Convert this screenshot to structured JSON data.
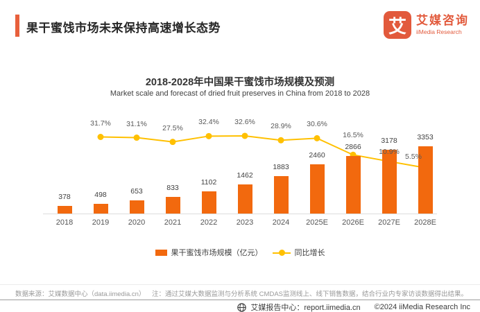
{
  "header": {
    "title": "果干蜜饯市场未来保持高速增长态势"
  },
  "logo": {
    "glyph": "艾",
    "name_cn": "艾媒咨询",
    "name_en": "iiMedia Research"
  },
  "chart_data": {
    "type": "bar+line",
    "title": "2018-2028年中国果干蜜饯市场规模及预测",
    "subtitle": "Market scale and forecast of dried fruit preserves in China from 2018 to 2028",
    "categories": [
      "2018",
      "2019",
      "2020",
      "2021",
      "2022",
      "2023",
      "2024",
      "2025E",
      "2026E",
      "2027E",
      "2028E"
    ],
    "series": [
      {
        "name": "果干蜜饯市场规模（亿元）",
        "type": "bar",
        "color": "#F2690E",
        "values": [
          378,
          498,
          653,
          833,
          1102,
          1462,
          1883,
          2460,
          2866,
          3178,
          3353
        ]
      },
      {
        "name": "同比增长",
        "type": "line",
        "unit": "%",
        "color": "#FFC000",
        "values": [
          null,
          31.7,
          31.1,
          27.5,
          32.4,
          32.6,
          28.9,
          30.6,
          16.5,
          10.9,
          5.5
        ]
      }
    ],
    "bar_axis_max": 3500,
    "grid": false,
    "legend_position": "bottom",
    "pct_label_offsets": {
      "8": [
        0,
        -28
      ],
      "9": [
        0,
        -14
      ],
      "10": [
        -17,
        -16
      ]
    }
  },
  "legend": {
    "bar_label": "果干蜜饯市场规模（亿元）",
    "line_label": "同比增长"
  },
  "footer": {
    "source": "数据来源：艾媒数据中心（data.iimedia.cn）",
    "note": "注：通过艾媒大数据监测与分析系统 CMDAS监测线上、线下销售数据，结合行业内专家访谈数据得出结果。",
    "report_center": "艾媒报告中心：report.iimedia.cn",
    "copyright": "©2024  iiMedia Research Inc"
  },
  "colors": {
    "bar": "#F2690E",
    "line": "#FFC000",
    "accent": "#E25A3C"
  }
}
